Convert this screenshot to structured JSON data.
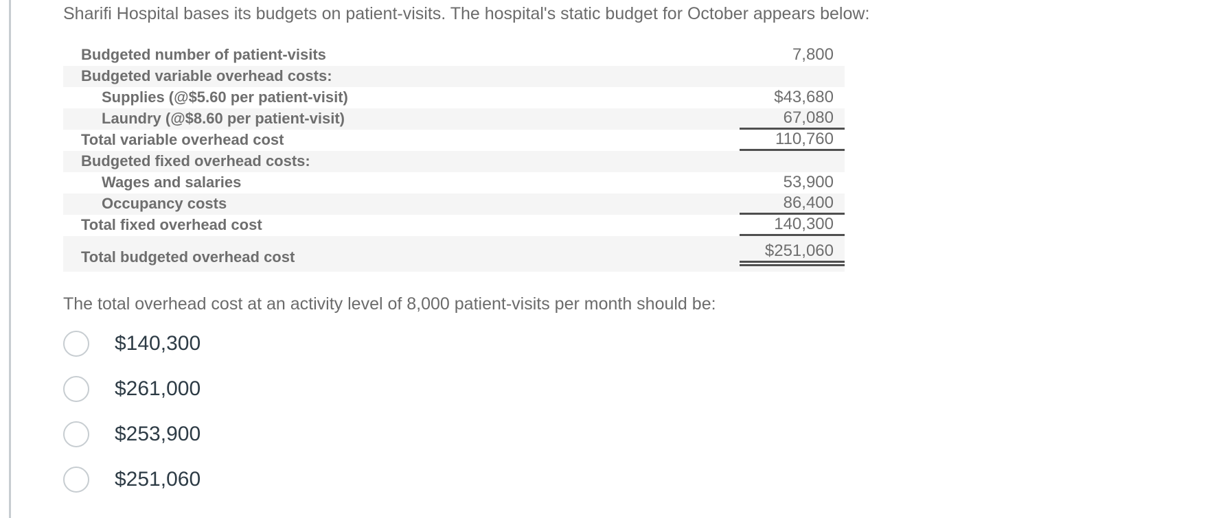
{
  "question": {
    "intro": "Sharifi Hospital bases its budgets on patient-visits. The hospital's static budget for October appears below:",
    "prompt": "The total overhead cost at an activity level of 8,000 patient-visits per month should be:"
  },
  "budget_table": {
    "rows": [
      {
        "label": "Budgeted number of patient-visits",
        "value": "7,800",
        "indent": false,
        "shaded": false,
        "underline": "none",
        "tall": false
      },
      {
        "label": "Budgeted variable overhead costs:",
        "value": "",
        "indent": false,
        "shaded": true,
        "underline": "none",
        "tall": false
      },
      {
        "label": "Supplies (@$5.60 per patient-visit)",
        "value": "$43,680",
        "indent": true,
        "shaded": false,
        "underline": "none",
        "tall": false
      },
      {
        "label": "Laundry (@$8.60 per patient-visit)",
        "value": "67,080",
        "indent": true,
        "shaded": true,
        "underline": "single",
        "tall": false
      },
      {
        "label": "Total variable overhead cost",
        "value": "110,760",
        "indent": false,
        "shaded": false,
        "underline": "single",
        "tall": false
      },
      {
        "label": "Budgeted fixed overhead costs:",
        "value": "",
        "indent": false,
        "shaded": true,
        "underline": "none",
        "tall": false
      },
      {
        "label": "Wages and salaries",
        "value": "53,900",
        "indent": true,
        "shaded": false,
        "underline": "none",
        "tall": false
      },
      {
        "label": "Occupancy costs",
        "value": "86,400",
        "indent": true,
        "shaded": true,
        "underline": "single",
        "tall": false
      },
      {
        "label": "Total fixed overhead cost",
        "value": "140,300",
        "indent": false,
        "shaded": false,
        "underline": "single",
        "tall": false
      },
      {
        "label": "Total budgeted overhead cost",
        "value": "$251,060",
        "indent": false,
        "shaded": true,
        "underline": "double",
        "tall": true
      }
    ]
  },
  "options": [
    {
      "label": "$140,300",
      "selected": false
    },
    {
      "label": "$261,000",
      "selected": false
    },
    {
      "label": "$253,900",
      "selected": false
    },
    {
      "label": "$251,060",
      "selected": false
    }
  ],
  "colors": {
    "background": "#ffffff",
    "panel_border": "#c7cdd1",
    "row_shade": "#f5f5f5",
    "table_text": "#6e6e6e",
    "question_text": "#6b6b6b",
    "underline": "#4f4f4f",
    "option_text": "#2d3b45",
    "radio_border": "#c7cdd1"
  }
}
